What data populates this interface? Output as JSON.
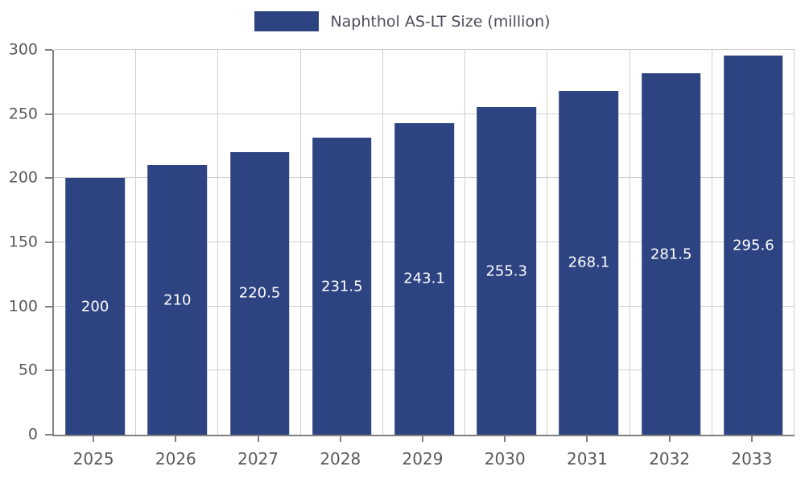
{
  "chart_data": {
    "type": "bar",
    "title": "",
    "legend_label": "Naphthol AS-LT Size (million)",
    "legend_position": "top-center",
    "categories": [
      "2025",
      "2026",
      "2027",
      "2028",
      "2029",
      "2030",
      "2031",
      "2032",
      "2033"
    ],
    "series": [
      {
        "name": "Naphthol AS-LT Size (million)",
        "values": [
          200,
          210,
          220.5,
          231.5,
          243.1,
          255.3,
          268.1,
          281.5,
          295.6
        ]
      }
    ],
    "value_labels": [
      "200",
      "210",
      "220.5",
      "231.5",
      "243.1",
      "255.3",
      "268.1",
      "281.5",
      "295.6"
    ],
    "xlabel": "",
    "ylabel": "",
    "ylim": [
      0,
      300
    ],
    "yticks": [
      0,
      50,
      100,
      150,
      200,
      250,
      300
    ],
    "grid": true,
    "bar_color": "#2e4482",
    "value_label_color": "#ffffff",
    "axis_color": "#808080",
    "gridline_color": "#d0d0d0",
    "tick_label_color": "#595959"
  }
}
